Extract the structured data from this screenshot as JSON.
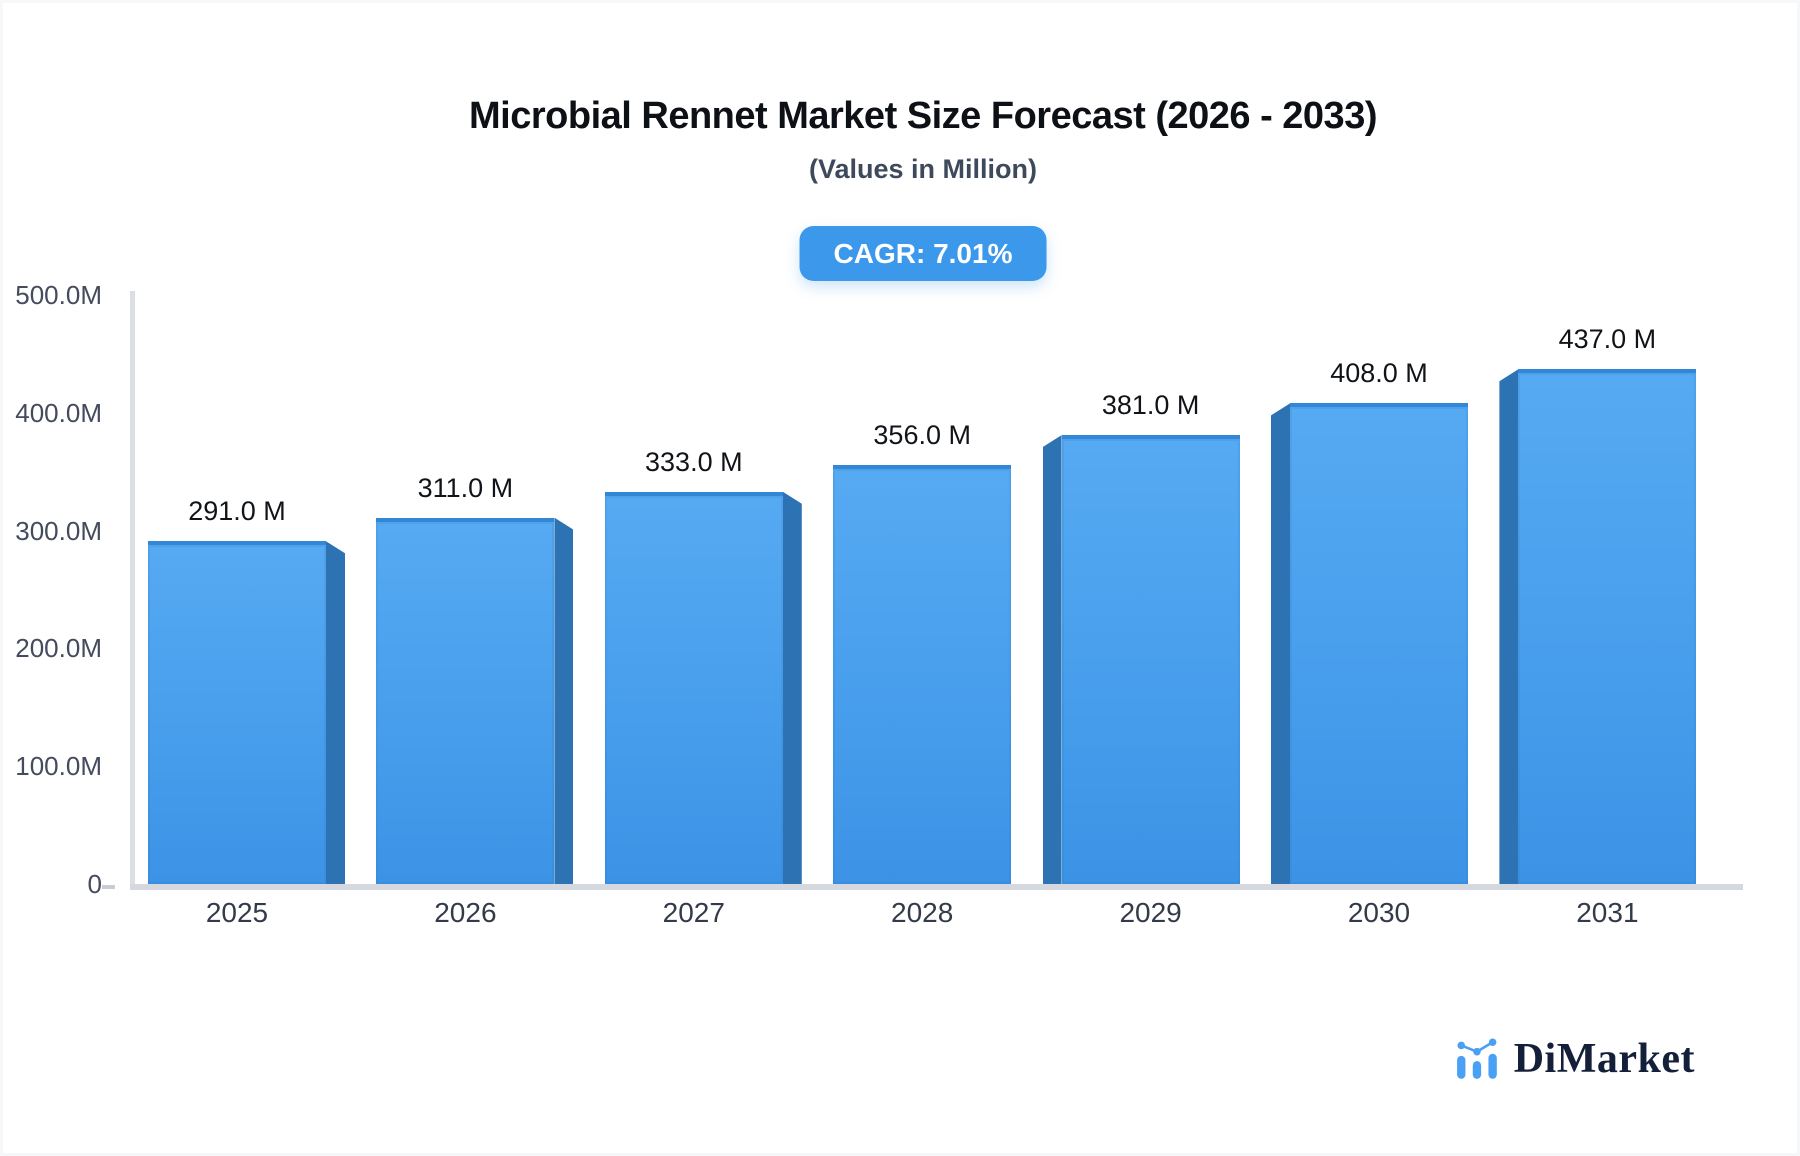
{
  "header": {
    "title": "Microbial Rennet Market Size Forecast (2026 - 2033)",
    "subtitle": "(Values in Million)",
    "cagr_badge": "CAGR: 7.01%"
  },
  "chart_data": {
    "type": "bar",
    "title": "Microbial Rennet Market Size Forecast (2026 - 2033)",
    "subtitle": "(Values in Million)",
    "cagr_percent": 7.01,
    "unit": "Million",
    "categories": [
      "2025",
      "2026",
      "2027",
      "2028",
      "2029",
      "2030",
      "2031"
    ],
    "values": [
      291.0,
      311.0,
      333.0,
      356.0,
      381.0,
      408.0,
      437.0
    ],
    "value_labels": [
      "291.0 M",
      "311.0 M",
      "333.0 M",
      "356.0 M",
      "381.0 M",
      "408.0 M",
      "437.0 M"
    ],
    "ylim": [
      0,
      500
    ],
    "y_tick_labels": [
      "500.0M",
      "400.0M",
      "300.0M",
      "200.0M",
      "100.0M",
      "0"
    ],
    "grid": false,
    "legend": false,
    "bar_color": "#459ceb",
    "bar_side_color": "#2d73b3",
    "accent_color": "#3b98eb",
    "style": "3d-bars, perspective toward center bar"
  },
  "branding": {
    "logo_text": "DiMarket",
    "logo_icon": "bar-chart-logo-icon",
    "logo_text_color": "#14203a",
    "logo_icon_color": "#4aa0f5"
  }
}
